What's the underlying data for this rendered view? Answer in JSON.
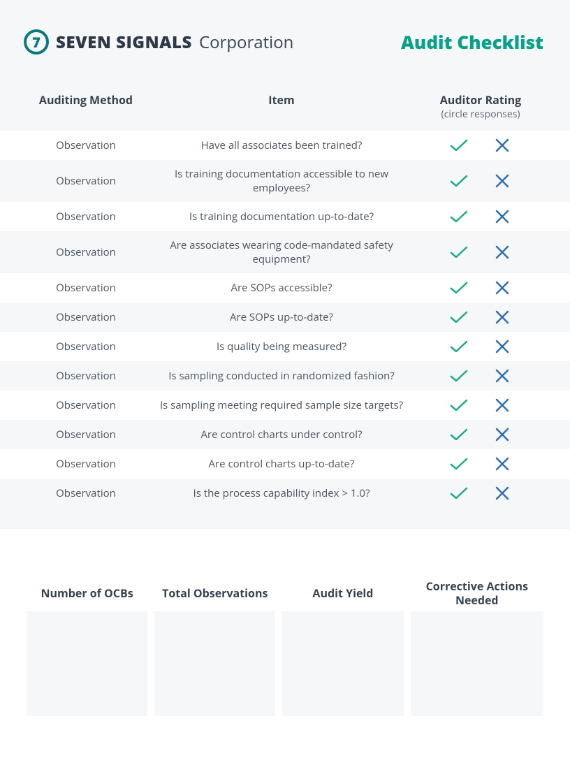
{
  "brand": {
    "logo_number": "7",
    "name_main": "SEVEN SIGNALS",
    "name_sub": "Corporation",
    "logo_color": "#0b7a7a"
  },
  "title": "Audit Checklist",
  "title_color": "#0aa18a",
  "colors": {
    "page_bg": "#f6f7f8",
    "row_alt": "#ffffff",
    "text": "#3a4551",
    "heading": "#37424f",
    "check": "#1aa98e",
    "cross": "#2e6fb0"
  },
  "table": {
    "headers": {
      "method": "Auditing Method",
      "item": "Item",
      "rating": "Auditor Rating",
      "rating_sub": "(circle responses)"
    },
    "rows": [
      {
        "method": "Observation",
        "item": "Have all associates been trained?"
      },
      {
        "method": "Observation",
        "item": "Is training documentation accessible to new employees?"
      },
      {
        "method": "Observation",
        "item": "Is training documentation up-to-date?"
      },
      {
        "method": "Observation",
        "item": "Are associates wearing code-mandated safety equipment?"
      },
      {
        "method": "Observation",
        "item": "Are SOPs accessible?"
      },
      {
        "method": "Observation",
        "item": "Are SOPs up-to-date?"
      },
      {
        "method": "Observation",
        "item": "Is quality being measured?"
      },
      {
        "method": "Observation",
        "item": "Is sampling conducted in randomized fashion?"
      },
      {
        "method": "Observation",
        "item": "Is sampling meeting required sample size targets?"
      },
      {
        "method": "Observation",
        "item": "Are control charts under control?"
      },
      {
        "method": "Observation",
        "item": "Are control charts up-to-date?"
      },
      {
        "method": "Observation",
        "item": "Is the process capability index > 1.0?"
      }
    ]
  },
  "summary": {
    "cards": [
      {
        "label": "Number of OCBs"
      },
      {
        "label": "Total Observations"
      },
      {
        "label": "Audit Yield"
      },
      {
        "label": "Corrective Actions Needed"
      }
    ]
  }
}
